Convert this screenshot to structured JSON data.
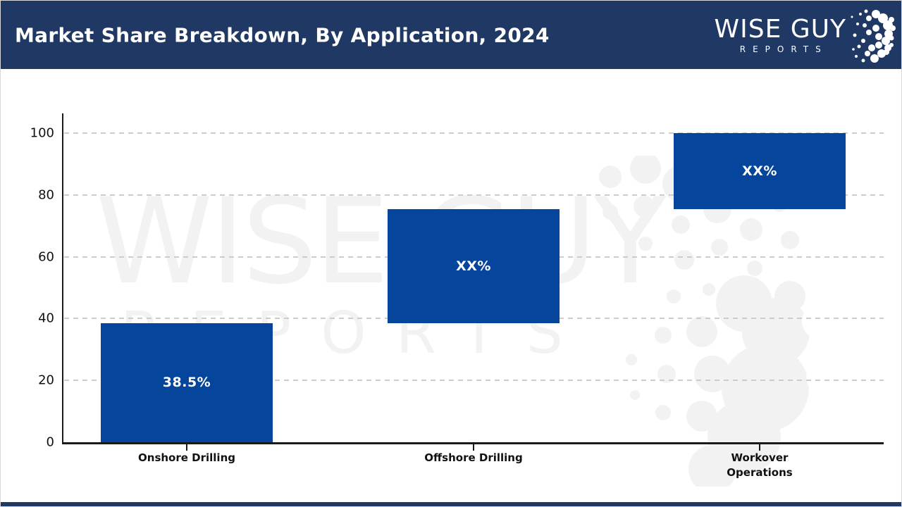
{
  "header": {
    "title": "Market Share Breakdown, By Application, 2024",
    "logo": {
      "line1": "WISE GUY",
      "line2": "REPORTS"
    }
  },
  "watermark": {
    "line1": "WISE GUY",
    "line2": "REPORTS"
  },
  "colors": {
    "header_bg": "#1f3864",
    "footer_bg": "#1f3864",
    "bar": "#05459c",
    "grid": "#cccccc",
    "axis": "#1a1a1a",
    "title_text": "#ffffff",
    "bar_label_text": "#ffffff",
    "watermark": "#f2f2f2"
  },
  "chart_data": {
    "type": "bar",
    "subtype": "floating_segment_waterfall",
    "title": "Market Share Breakdown, By Application, 2024",
    "categories": [
      "Onshore Drilling",
      "Offshore Drilling",
      "Workover Operations"
    ],
    "segments": [
      {
        "category": "Onshore Drilling",
        "start": 0,
        "end": 38.5,
        "label": "38.5%",
        "label_lines": [
          "Onshore Drilling"
        ]
      },
      {
        "category": "Offshore Drilling",
        "start": 38.5,
        "end": 75.5,
        "label": "XX%",
        "label_lines": [
          "Offshore Drilling"
        ]
      },
      {
        "category": "Workover Operations",
        "start": 75.5,
        "end": 100,
        "label": "XX%",
        "label_lines": [
          "Workover",
          "Operations"
        ]
      }
    ],
    "ylim": [
      0,
      100
    ],
    "yticks": [
      0,
      20,
      40,
      60,
      80,
      100
    ],
    "xlabel": "",
    "ylabel": "",
    "grid": "horizontal-dashed",
    "legend": "none"
  }
}
